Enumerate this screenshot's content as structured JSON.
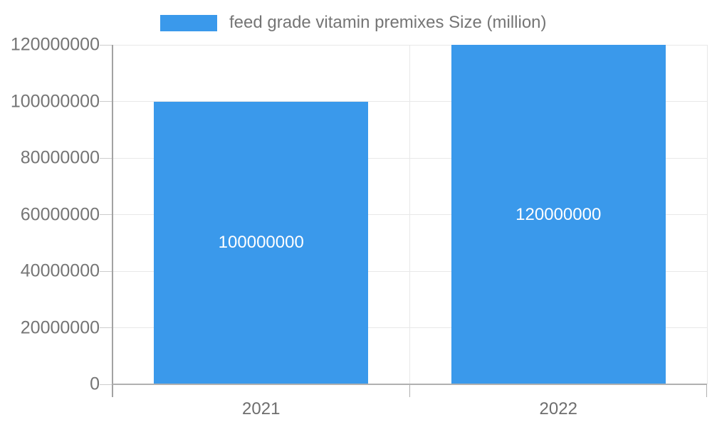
{
  "legend": {
    "label": "feed grade vitamin premixes Size (million)"
  },
  "colors": {
    "bar": "#3a99eb",
    "bar_label_text": "#ffffff",
    "axis_text": "#757575",
    "x_axis_text": "#6e6e6e",
    "gridline": "#e8e8e8",
    "baseline": "#b0b0b0",
    "y_axis_line": "#a2a2a2",
    "y_tick": "#cccccc",
    "boundary_tick": "#b0b0b0",
    "right_edge_line": "#e8e8e8",
    "background": "#ffffff"
  },
  "chart_data": {
    "type": "bar",
    "title": "",
    "xlabel": "",
    "ylabel": "",
    "categories": [
      "2021",
      "2022"
    ],
    "series": [
      {
        "name": "feed grade vitamin premixes Size (million)",
        "values": [
          100000000,
          120000000
        ]
      }
    ],
    "bar_labels": [
      "100000000",
      "120000000"
    ],
    "y_ticks": [
      0,
      20000000,
      40000000,
      60000000,
      80000000,
      100000000,
      120000000
    ],
    "y_tick_labels": [
      "0",
      "20000000",
      "40000000",
      "60000000",
      "80000000",
      "100000000",
      "120000000"
    ],
    "ylim": [
      0,
      120000000
    ],
    "grid": true,
    "legend_position": "top"
  }
}
